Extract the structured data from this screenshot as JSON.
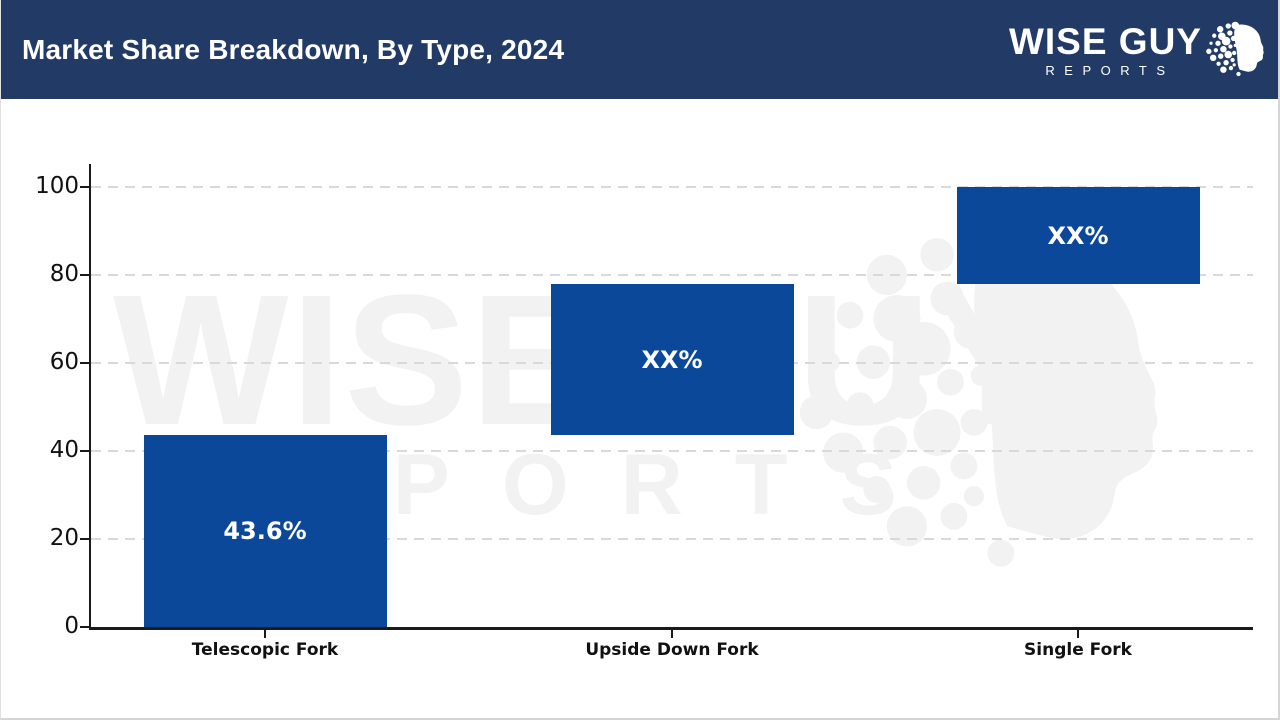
{
  "header": {
    "title": "Market Share Breakdown, By Type, 2024",
    "logo": {
      "wordmark": "WISE GUY",
      "subtext": "REPORTS"
    }
  },
  "watermark": {
    "wordmark": "WISE GUY",
    "subtext": "REPORTS"
  },
  "chart_data": {
    "type": "bar",
    "subtype": "floating-segment-breakdown",
    "title": "Market Share Breakdown, By Type, 2024",
    "categories": [
      "Telescopic Fork",
      "Upside Down Fork",
      "Single Fork"
    ],
    "segments": [
      {
        "category": "Telescopic Fork",
        "start": 0,
        "end": 43.6,
        "label": "43.6%"
      },
      {
        "category": "Upside Down Fork",
        "start": 43.6,
        "end": 77.9,
        "label": "XX%"
      },
      {
        "category": "Single Fork",
        "start": 77.9,
        "end": 100,
        "label": "XX%"
      }
    ],
    "xlabel": "",
    "ylabel": "",
    "ylim": [
      0,
      100
    ],
    "yticks": [
      0,
      20,
      40,
      60,
      80,
      100
    ],
    "grid": {
      "horizontal": true,
      "style": "dashed"
    },
    "legend": "none",
    "colors": {
      "bar": "#0b4899",
      "bar_label": "#ffffff",
      "axis": "#1a1a1a",
      "grid": "#d9d9d9",
      "header_bg": "#213a66",
      "watermark": "#f2f2f3"
    }
  }
}
